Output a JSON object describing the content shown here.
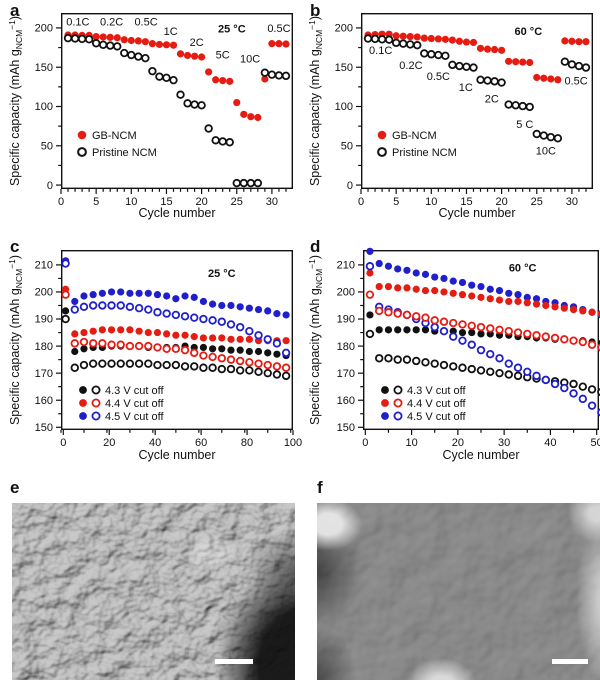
{
  "colors": {
    "red": "#e51c12",
    "blue": "#1f1fcc",
    "black": "#111111"
  },
  "axis": {
    "x_label": "Cycle number",
    "y_label_prefix": "Specific capacity (mAh g",
    "y_label_sub": "NCM",
    "y_label_sup": "−1",
    "y_label_suffix": ")"
  },
  "panels": {
    "a": {
      "label": "a"
    },
    "b": {
      "label": "b"
    },
    "c": {
      "label": "c"
    },
    "d": {
      "label": "d"
    },
    "e": {
      "label": "e"
    },
    "f": {
      "label": "f"
    }
  },
  "chart_data": [
    {
      "id": "a",
      "type": "scatter",
      "temperature_label": "25 °C",
      "xlim": [
        0,
        33
      ],
      "ylim": [
        -5,
        219
      ],
      "x_ticks": [
        0,
        5,
        10,
        15,
        20,
        25,
        30
      ],
      "x_minor_step": 1,
      "y_ticks": [
        0,
        50,
        100,
        150,
        200
      ],
      "y_minor_step": 25,
      "x": [
        1,
        2,
        3,
        4,
        5,
        6,
        7,
        8,
        9,
        10,
        11,
        12,
        13,
        14,
        15,
        16,
        17,
        18,
        19,
        20,
        21,
        22,
        23,
        24,
        25,
        26,
        27,
        28,
        29,
        30,
        31,
        32
      ],
      "series": [
        {
          "name": "GB-NCM",
          "color": "red",
          "filled": true,
          "y": [
            191,
            191,
            190.5,
            190.5,
            189,
            188.5,
            188,
            187.5,
            185,
            184,
            183.5,
            182.5,
            180,
            179,
            178.5,
            178,
            167,
            165,
            164,
            163,
            144,
            134,
            133,
            132,
            105,
            90,
            87,
            86,
            135,
            180,
            180,
            179.5
          ]
        },
        {
          "name": "Pristine NCM",
          "color": "black",
          "filled": false,
          "y": [
            187,
            186.5,
            186,
            185.5,
            180.5,
            178.5,
            177.5,
            176.5,
            168,
            165.5,
            163.5,
            161.5,
            145,
            138,
            136.5,
            133.5,
            115,
            104,
            102.5,
            101.5,
            72,
            57,
            55.5,
            54.5,
            2.5,
            2.5,
            2.5,
            2.5,
            143,
            140.5,
            139.5,
            139
          ]
        }
      ],
      "annotations": [
        {
          "text": "0.1C",
          "x": 2.4,
          "y": 208
        },
        {
          "text": "0.2C",
          "x": 7.2,
          "y": 208
        },
        {
          "text": "0.5C",
          "x": 12.1,
          "y": 208
        },
        {
          "text": "1C",
          "x": 15.6,
          "y": 196
        },
        {
          "text": "2C",
          "x": 19.3,
          "y": 182
        },
        {
          "text": "25 °C",
          "x": 24.3,
          "y": 199,
          "bold": true
        },
        {
          "text": "0.5C",
          "x": 31,
          "y": 200
        },
        {
          "text": "5C",
          "x": 23,
          "y": 166
        },
        {
          "text": "10C",
          "x": 26.9,
          "y": 161
        }
      ],
      "legend": {
        "style": "single",
        "px": 21,
        "rows": [
          122,
          139
        ],
        "items": [
          {
            "label": "GB-NCM",
            "color": "red",
            "filled": true
          },
          {
            "label": "Pristine NCM",
            "color": "black",
            "filled": false
          }
        ]
      }
    },
    {
      "id": "b",
      "type": "scatter",
      "temperature_label": "60 °C",
      "xlim": [
        0,
        33
      ],
      "ylim": [
        -5,
        219
      ],
      "x_ticks": [
        0,
        5,
        10,
        15,
        20,
        25,
        30
      ],
      "x_minor_step": 1,
      "y_ticks": [
        0,
        50,
        100,
        150,
        200
      ],
      "y_minor_step": 25,
      "x": [
        1,
        2,
        3,
        4,
        5,
        6,
        7,
        8,
        9,
        10,
        11,
        12,
        13,
        14,
        15,
        16,
        17,
        18,
        19,
        20,
        21,
        22,
        23,
        24,
        25,
        26,
        27,
        28,
        29,
        30,
        31,
        32
      ],
      "series": [
        {
          "name": "GB-NCM",
          "color": "red",
          "filled": true,
          "y": [
            191,
            191.5,
            192,
            192,
            190,
            189.5,
            189,
            188.5,
            187,
            186.5,
            186,
            185.5,
            184.5,
            183,
            182,
            181.5,
            174,
            173,
            172.5,
            171.5,
            157.5,
            157,
            156.5,
            156,
            137,
            136,
            135,
            134,
            183.5,
            183,
            182.5,
            182.5
          ]
        },
        {
          "name": "Pristine NCM",
          "color": "black",
          "filled": false,
          "y": [
            186.5,
            186,
            185.5,
            185,
            181,
            180,
            179,
            178,
            167.5,
            166.5,
            165.5,
            164.5,
            153,
            151.5,
            150.5,
            149.5,
            134,
            133,
            132,
            130.5,
            102.5,
            101.5,
            100.5,
            99.5,
            65,
            63,
            61,
            59.5,
            157,
            153.5,
            151.5,
            149.5
          ]
        }
      ],
      "annotations": [
        {
          "text": "0.1C",
          "x": 2.8,
          "y": 172
        },
        {
          "text": "0.2C",
          "x": 7.1,
          "y": 153
        },
        {
          "text": "0.5C",
          "x": 11,
          "y": 139
        },
        {
          "text": "1C",
          "x": 14.9,
          "y": 125
        },
        {
          "text": "2C",
          "x": 18.6,
          "y": 110
        },
        {
          "text": "5 C",
          "x": 23.3,
          "y": 78
        },
        {
          "text": "10C",
          "x": 26.3,
          "y": 44
        },
        {
          "text": "60 °C",
          "x": 23.8,
          "y": 196,
          "bold": true
        },
        {
          "text": "0.5C",
          "x": 30.6,
          "y": 133
        }
      ],
      "legend": {
        "style": "single",
        "px": 21,
        "rows": [
          122,
          139
        ],
        "items": [
          {
            "label": "GB-NCM",
            "color": "red",
            "filled": true
          },
          {
            "label": "Pristine NCM",
            "color": "black",
            "filled": false
          }
        ]
      }
    },
    {
      "id": "c",
      "type": "scatter",
      "temperature_label": "25 °C",
      "xlim": [
        -1,
        100
      ],
      "ylim": [
        149,
        215.5
      ],
      "x_ticks": [
        0,
        20,
        40,
        60,
        80,
        100
      ],
      "x_minor_step": 10,
      "y_ticks": [
        150,
        160,
        170,
        180,
        190,
        200,
        210
      ],
      "y_minor_step": 5,
      "x": [
        1,
        5,
        9,
        13,
        17,
        21,
        25,
        29,
        33,
        37,
        41,
        45,
        49,
        53,
        57,
        61,
        65,
        69,
        73,
        77,
        81,
        85,
        89,
        93,
        97
      ],
      "series": [
        {
          "name": "4.3 V cut off GB-NCM",
          "color": "black",
          "filled": true,
          "y": [
            193,
            178,
            179,
            179.5,
            179.5,
            180,
            180,
            180,
            180,
            179.5,
            179.5,
            179.5,
            179.5,
            180,
            179.5,
            179.5,
            179,
            179,
            178.5,
            178.5,
            178,
            178,
            177.5,
            177,
            176.5
          ]
        },
        {
          "name": "4.4 V cut off GB-NCM",
          "color": "red",
          "filled": true,
          "y": [
            201,
            184.5,
            185,
            185.5,
            186,
            186,
            186,
            186,
            185.5,
            185,
            185,
            184.5,
            184,
            184,
            183.5,
            183,
            183,
            183,
            182.5,
            182.5,
            182.5,
            182,
            182,
            182,
            182
          ]
        },
        {
          "name": "4.5 V cut off GB-NCM",
          "color": "blue",
          "filled": true,
          "y": [
            211.5,
            196.5,
            198.5,
            199,
            199.5,
            200,
            200,
            199.5,
            199.5,
            199.5,
            199,
            198.5,
            197.5,
            198.5,
            198,
            196.5,
            195.5,
            195,
            195,
            194.5,
            194,
            193.5,
            193,
            192,
            191.5
          ]
        },
        {
          "name": "4.3 V cut off pristine",
          "color": "black",
          "filled": false,
          "y": [
            190,
            172,
            173,
            173.5,
            173.5,
            173.5,
            173.5,
            173.5,
            173.5,
            173.5,
            173,
            173,
            173,
            172.5,
            172.5,
            172,
            172,
            171.5,
            171.5,
            171,
            171,
            170.5,
            170,
            169.5,
            169
          ]
        },
        {
          "name": "4.4 V cut off pristine",
          "color": "red",
          "filled": false,
          "y": [
            199,
            181,
            181.5,
            181,
            181,
            180.5,
            180.5,
            180,
            180,
            180,
            179.5,
            179,
            179,
            178.5,
            177.5,
            176.5,
            176,
            175.5,
            175,
            174.5,
            174,
            173.5,
            173,
            172.5,
            172
          ]
        },
        {
          "name": "4.5 V cut off pristine",
          "color": "blue",
          "filled": false,
          "y": [
            210.5,
            193.5,
            194.5,
            195,
            195,
            195,
            195,
            194.5,
            194,
            193.5,
            192.5,
            192,
            191.5,
            191,
            190.5,
            190,
            189.5,
            189,
            188,
            187,
            185.5,
            184,
            182.5,
            181,
            177.5
          ]
        }
      ],
      "annotations": [
        {
          "text": "25 °C",
          "x": 69,
          "y": 207,
          "bold": true
        }
      ],
      "legend": {
        "style": "pair",
        "px": 22,
        "rows": [
          140,
          153,
          166
        ],
        "items": [
          {
            "label": "4.3 V cut off",
            "color": "black"
          },
          {
            "label": "4.4 V cut off",
            "color": "red"
          },
          {
            "label": "4.5 V cut off",
            "color": "blue"
          }
        ]
      }
    },
    {
      "id": "d",
      "type": "scatter",
      "temperature_label": "60 °C",
      "xlim": [
        -0.5,
        50.5
      ],
      "ylim": [
        149,
        215.5
      ],
      "x_ticks": [
        0,
        10,
        20,
        30,
        40,
        50
      ],
      "x_minor_step": 5,
      "y_ticks": [
        150,
        160,
        170,
        180,
        190,
        200,
        210
      ],
      "y_minor_step": 5,
      "x": [
        1,
        3,
        5,
        7,
        9,
        11,
        13,
        15,
        17,
        19,
        21,
        23,
        25,
        27,
        29,
        31,
        33,
        35,
        37,
        39,
        41,
        43,
        45,
        47,
        49,
        51
      ],
      "series": [
        {
          "name": "4.3 V cut off GB-NCM",
          "color": "black",
          "filled": true,
          "y": [
            191.5,
            186,
            186,
            186,
            186,
            186,
            186,
            185.5,
            185.5,
            185.5,
            185,
            185,
            184.5,
            184.5,
            184,
            184,
            183.5,
            183.5,
            183,
            183,
            182.5,
            182.5,
            182,
            182,
            181.5,
            181
          ]
        },
        {
          "name": "4.5 V cut off GB-NCM",
          "color": "blue",
          "filled": true,
          "y": [
            215,
            210.5,
            209.5,
            208.5,
            208,
            207,
            206.5,
            205.5,
            205,
            204,
            203.5,
            202.5,
            202,
            201,
            200.5,
            199.5,
            199,
            198,
            197.5,
            196.5,
            196,
            195,
            194.5,
            193.5,
            192.5,
            191.5
          ]
        },
        {
          "name": "4.4 V cut off GB-NCM",
          "color": "red",
          "filled": true,
          "y": [
            207,
            202,
            202,
            201.5,
            201.5,
            201,
            200.5,
            200.5,
            200,
            199.5,
            199,
            198.5,
            198,
            197.5,
            197,
            196.5,
            196.5,
            196,
            195.5,
            195,
            194.5,
            194,
            193.5,
            193,
            192.5,
            192
          ]
        },
        {
          "name": "4.3 V cut off pristine",
          "color": "black",
          "filled": false,
          "y": [
            184.5,
            175.5,
            175.5,
            175,
            175,
            174.5,
            174,
            173.5,
            173,
            172.5,
            172,
            171.5,
            171,
            170.5,
            170,
            169.5,
            169,
            168.5,
            168,
            167.5,
            167,
            166.5,
            166,
            165,
            164,
            163
          ]
        },
        {
          "name": "4.5 V cut off pristine",
          "color": "blue",
          "filled": false,
          "y": [
            209.5,
            194.5,
            193.5,
            192.5,
            191.5,
            190,
            188.5,
            187,
            185.5,
            183.5,
            182,
            180.5,
            178.5,
            177,
            175.5,
            173.5,
            172,
            170.5,
            169,
            167.5,
            166,
            164.5,
            162.5,
            160.5,
            158,
            155.5
          ]
        },
        {
          "name": "4.4 V cut off pristine",
          "color": "red",
          "filled": false,
          "y": [
            199,
            193,
            192.5,
            192,
            191.5,
            191,
            190.5,
            189.5,
            189,
            188.5,
            188,
            187.5,
            187,
            186.5,
            186,
            185.5,
            185,
            184.5,
            184,
            183.5,
            183,
            182.5,
            182,
            181.5,
            180.5,
            179.5
          ]
        }
      ],
      "annotations": [
        {
          "text": "60 °C",
          "x": 34,
          "y": 209,
          "bold": true
        }
      ],
      "legend": {
        "style": "pair",
        "px": 22,
        "rows": [
          140,
          153,
          166
        ],
        "items": [
          {
            "label": "4.3 V cut off",
            "color": "black"
          },
          {
            "label": "4.4 V cut off",
            "color": "red"
          },
          {
            "label": "4.5 V cut off",
            "color": "blue"
          }
        ]
      }
    }
  ],
  "sem_panels": {
    "e": {
      "description": "SEM image, faceted primary particles on secondary particle surface",
      "scale_bar": "scale-bar"
    },
    "f": {
      "description": "SEM image, smooth grain-boundary-coated particle surface",
      "scale_bar": "scale-bar"
    }
  }
}
